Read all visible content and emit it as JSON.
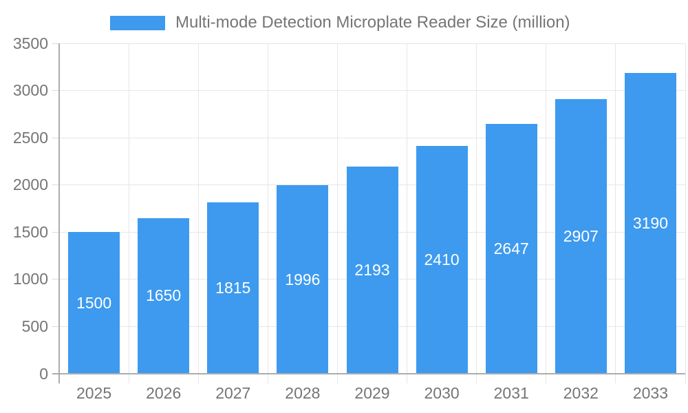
{
  "chart_data": {
    "type": "bar",
    "title": "",
    "legend": "Multi-mode Detection Microplate Reader Size (million)",
    "categories": [
      "2025",
      "2026",
      "2027",
      "2028",
      "2029",
      "2030",
      "2031",
      "2032",
      "2033"
    ],
    "values": [
      1500,
      1650,
      1815,
      1996,
      2193,
      2410,
      2647,
      2907,
      3190
    ],
    "xlabel": "",
    "ylabel": "",
    "ylim": [
      0,
      3500
    ],
    "ytick_step": 500,
    "ytick_labels": [
      "0",
      "500",
      "1000",
      "1500",
      "2000",
      "2500",
      "3000",
      "3500"
    ],
    "grid": true,
    "legend_position": "top-center",
    "bar_labels_inside": true,
    "colors": {
      "bar": "#3d9aef",
      "grid_line": "#e6e6e6",
      "tick_line": "#d9d9d9",
      "axis_line": "#acacac",
      "axis_text": "#757575",
      "bar_label_text": "#ffffff",
      "background": "#ffffff"
    }
  }
}
